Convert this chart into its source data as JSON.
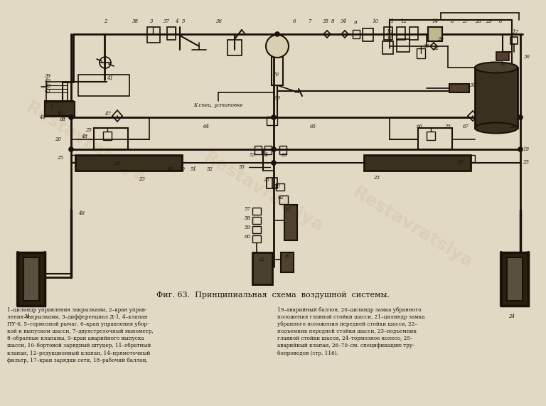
{
  "bg_color": "#e2d9c4",
  "line_color": "#1a1208",
  "dark_color": "#2a2010",
  "title": "Фиг. 63.  Принципиальная  схема  воздушной  системы.",
  "caption_left": "1–цилиндр управления закрылками, 2–кран управ-\nления закрылками, 3–дифференциал Д-1, 4–клапан\nПУ-6, 5–тормозной рычаг, 6–кран управления убор-\nкой и выпуском шасси, 7–двухстрелочный манометр,\n8–обратные клапаны, 9–кран аварийного выпуска\nшасси, 10–бортовой зарядный штуцер, 11–обратный\nклапан, 12–редукционный клапан, 14–прямоточный\nфильтр, 17–кран зарядки сети, 18–рабочий баллон,",
  "caption_right": "19–аварийный баллон, 20–цилиндр замка убранного\nположения главной стойки шасси, 21–цилиндр замка\nубранного положения передней стойки шасси, 22–\nподъемник передней стойки шасси, 23–подъемник\nглавной стойки шасси, 24–тормозное колесо; 25–\nаварийный клапан, 26–70–см. спецификацию тру-\nбопроводов (стр. 116)."
}
